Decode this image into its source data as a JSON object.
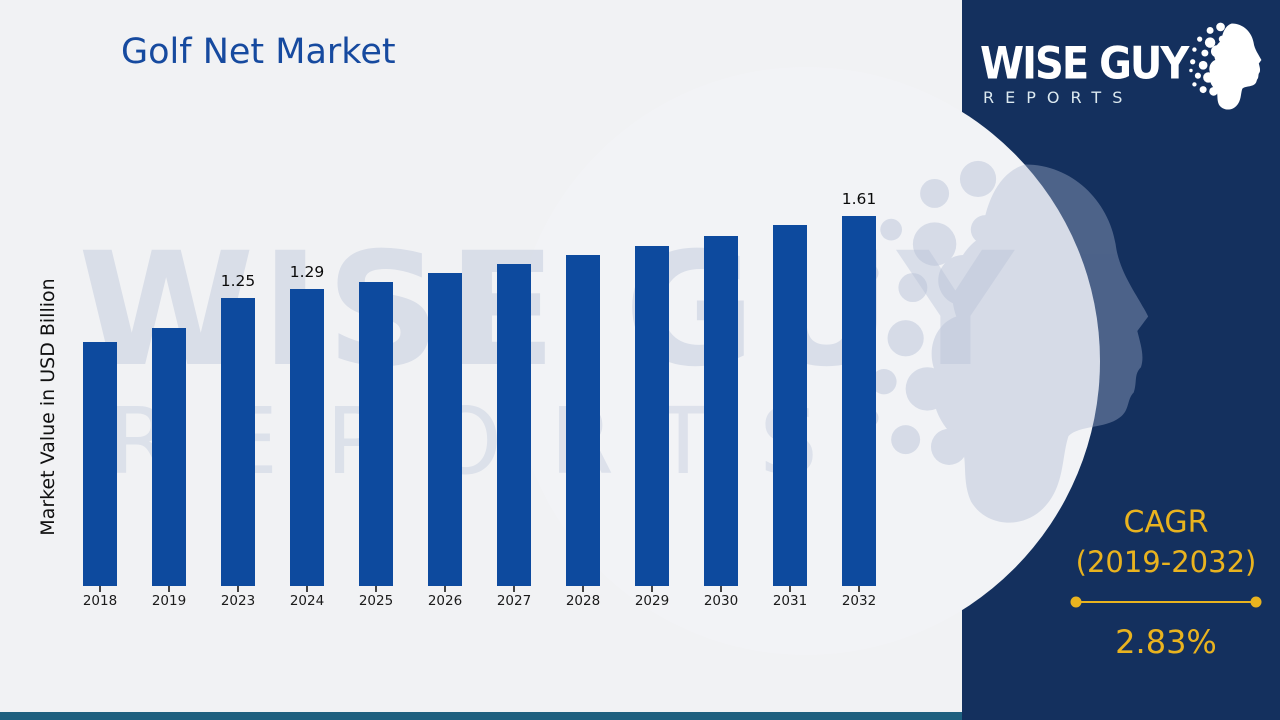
{
  "page": {
    "background": "#f1f2f4",
    "title_color": "#164a9f",
    "navy": "#14305e",
    "gold": "#e9b31f",
    "teal": "#1e607f",
    "bar_color": "#0d4a9e",
    "circle_fill": "#f2f3f6",
    "watermark_tint": "#a9b6d0"
  },
  "logo": {
    "wordmark": "WISE GUY",
    "subtext": "REPORTS"
  },
  "watermark": {
    "wordmark": "WISE GUY",
    "subtext": "REPORTS"
  },
  "chart_data": {
    "type": "bar",
    "title": "Golf Net Market",
    "xlabel": "",
    "ylabel": "Market Value in USD Billion",
    "categories": [
      "2018",
      "2019",
      "2023",
      "2024",
      "2025",
      "2026",
      "2027",
      "2028",
      "2029",
      "2030",
      "2031",
      "2032"
    ],
    "values": [
      1.06,
      1.12,
      1.25,
      1.29,
      1.32,
      1.36,
      1.4,
      1.44,
      1.48,
      1.52,
      1.57,
      1.61
    ],
    "bar_labels": [
      "",
      "",
      "1.25",
      "1.29",
      "",
      "",
      "",
      "",
      "",
      "",
      "",
      "1.61"
    ],
    "ylim": [
      0,
      1.75
    ],
    "grid": false,
    "legend": false,
    "bar_color": "#0d4a9e"
  },
  "cagr": {
    "heading": "CAGR",
    "range": "(2019-2032)",
    "value": "2.83%"
  }
}
